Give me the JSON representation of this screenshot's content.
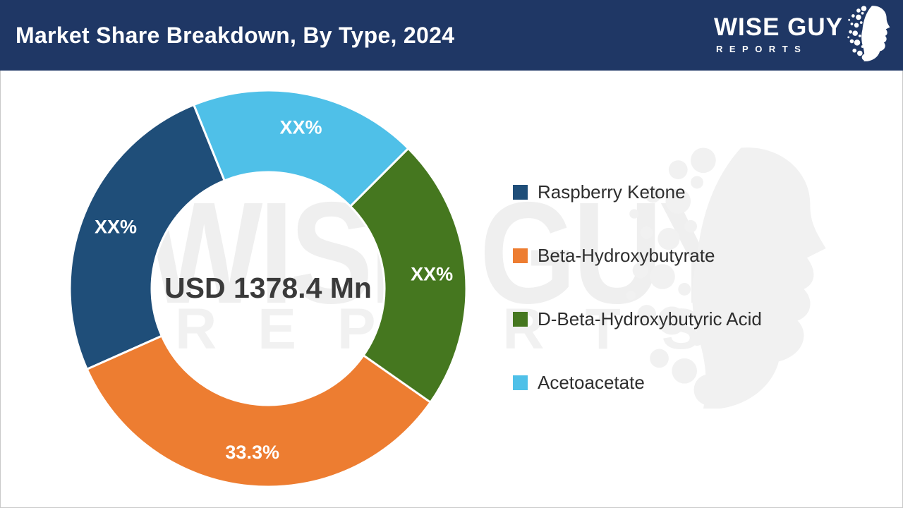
{
  "header": {
    "title": "Market Share Breakdown, By Type, 2024",
    "logo": {
      "line1": "WISE GUY",
      "line2": "REPORTS"
    }
  },
  "watermark": {
    "line1": "WISE GUY",
    "line2": "REPORTS"
  },
  "chart_data": {
    "type": "pie",
    "subtype": "donut",
    "title": "Market Share Breakdown, By Type, 2024",
    "center_label": "USD 1378.4 Mn",
    "categories": [
      "Raspberry Ketone",
      "Beta-Hydroxybutyrate",
      "D-Beta-Hydroxybutyric Acid",
      "Acetoacetate"
    ],
    "slice_labels": [
      "XX%",
      "33.3%",
      "XX%",
      "XX%"
    ],
    "values_pct_est": [
      25.6,
      33.3,
      22.2,
      18.6
    ],
    "colors": [
      "#1f4e79",
      "#ed7d31",
      "#45771f",
      "#4fc0e8"
    ],
    "legend_position": "right",
    "segments": [
      {
        "name": "Raspberry Ketone",
        "label": "XX%",
        "value_pct_est": 25.6,
        "start_deg": 246,
        "end_deg": 338,
        "color": "#1f4e79"
      },
      {
        "name": "Beta-Hydroxybutyrate",
        "label": "33.3%",
        "value_pct_est": 33.3,
        "start_deg": 125,
        "end_deg": 246,
        "color": "#ed7d31"
      },
      {
        "name": "D-Beta-Hydroxybutyric Acid",
        "label": "XX%",
        "value_pct_est": 22.2,
        "start_deg": 45,
        "end_deg": 125,
        "color": "#45771f"
      },
      {
        "name": "Acetoacetate",
        "label": "XX%",
        "value_pct_est": 18.6,
        "start_deg": -22,
        "end_deg": 45,
        "color": "#4fc0e8"
      }
    ]
  },
  "legend": {
    "items": [
      {
        "label": "Raspberry Ketone",
        "color": "#1f4e79"
      },
      {
        "label": "Beta-Hydroxybutyrate",
        "color": "#ed7d31"
      },
      {
        "label": "D-Beta-Hydroxybutyric Acid",
        "color": "#45771f"
      },
      {
        "label": "Acetoacetate",
        "color": "#4fc0e8"
      }
    ]
  },
  "colors": {
    "header_bg": "#1f3765",
    "page_border": "#c9c9c9",
    "center_text": "#3a3a3a",
    "legend_text": "#2e2e2e",
    "watermark": "#efefef"
  }
}
